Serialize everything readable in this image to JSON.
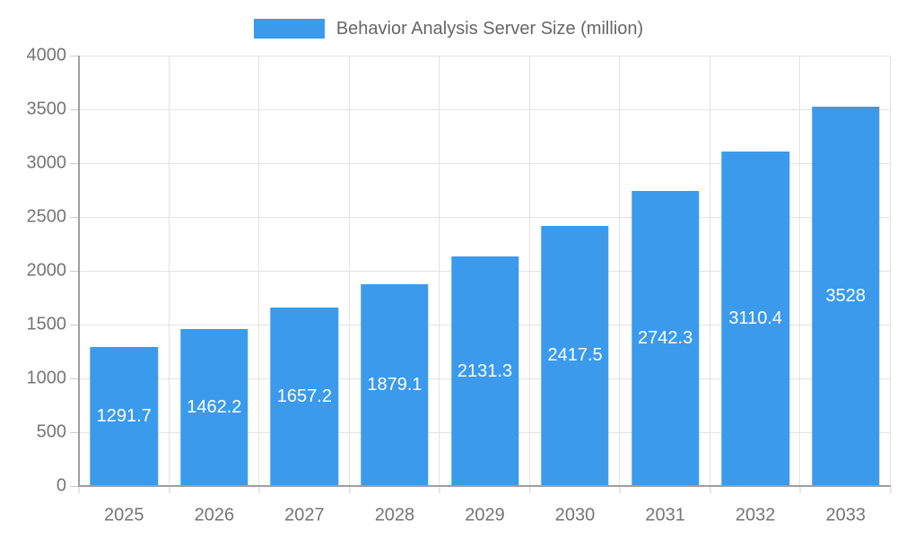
{
  "chart_data": {
    "type": "bar",
    "legend_label": "Behavior Analysis Server Size (million)",
    "categories": [
      "2025",
      "2026",
      "2027",
      "2028",
      "2029",
      "2030",
      "2031",
      "2032",
      "2033"
    ],
    "values": [
      1291.7,
      1462.2,
      1657.2,
      1879.1,
      2131.3,
      2417.5,
      2742.3,
      3110.4,
      3528
    ],
    "value_labels": [
      "1291.7",
      "1462.2",
      "1657.2",
      "1879.1",
      "2131.3",
      "2417.5",
      "2742.3",
      "3110.4",
      "3528"
    ],
    "xlabel": "",
    "ylabel": "",
    "ylim": [
      0,
      4000
    ],
    "y_ticks": [
      0,
      500,
      1000,
      1500,
      2000,
      2500,
      3000,
      3500,
      4000
    ],
    "grid": true,
    "legend_position": "top",
    "colors": {
      "bar": "#3B9AEC",
      "value_label": "#ffffff",
      "axis_text": "#757575",
      "legend_text": "#666666",
      "gridline": "#e3e3e3",
      "axis_line": "#9e9e9e",
      "tick": "#cccccc",
      "background": "#ffffff"
    }
  }
}
